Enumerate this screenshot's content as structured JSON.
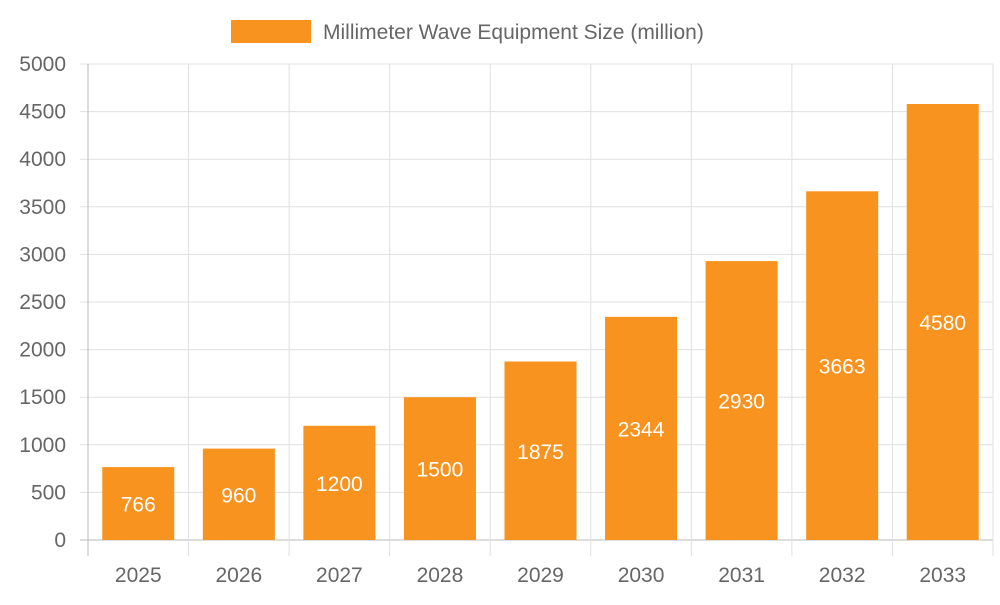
{
  "chart_data": {
    "type": "bar",
    "title": "",
    "xlabel": "",
    "ylabel": "",
    "categories": [
      "2025",
      "2026",
      "2027",
      "2028",
      "2029",
      "2030",
      "2031",
      "2032",
      "2033"
    ],
    "series": [
      {
        "name": "Millimeter Wave Equipment Size (million)",
        "values": [
          766,
          960,
          1200,
          1500,
          1875,
          2344,
          2930,
          3663,
          4580
        ],
        "color": "#f7931e"
      }
    ],
    "ylim": [
      0,
      5000
    ],
    "yticks": [
      0,
      500,
      1000,
      1500,
      2000,
      2500,
      3000,
      3500,
      4000,
      4500,
      5000
    ],
    "grid": true,
    "legend_position": "top",
    "data_labels": true,
    "data_label_color": "#ffffff",
    "grid_color": "#e0e0e0",
    "text_color": "#666666"
  }
}
